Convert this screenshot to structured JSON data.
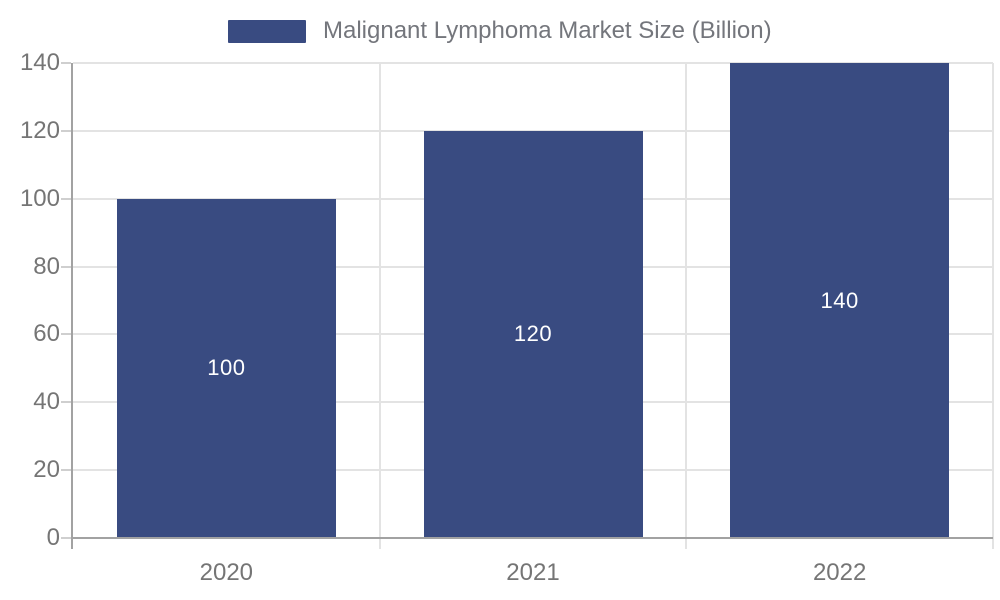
{
  "chart_data": {
    "type": "bar",
    "title": "",
    "categories": [
      "2020",
      "2021",
      "2022"
    ],
    "series": [
      {
        "name": "Malignant Lymphoma Market Size (Billion)",
        "values": [
          100,
          120,
          140
        ],
        "bar_labels": [
          "100",
          "120",
          "140"
        ]
      }
    ],
    "xlabel": "",
    "ylabel": "",
    "ylim": [
      0,
      140
    ],
    "yticks": [
      0,
      20,
      40,
      60,
      80,
      100,
      120,
      140
    ],
    "grid": true,
    "legend_position": "top-center",
    "colors": {
      "bar": "#394B81",
      "gridline": "#E3E3E3",
      "axis_line": "#A2A2A2",
      "tick": "#CFCFCF",
      "axis_text": "#757575",
      "legend_text": "#74767C",
      "value_label_text": "#FFFFFF",
      "background": "#FFFFFF"
    }
  }
}
